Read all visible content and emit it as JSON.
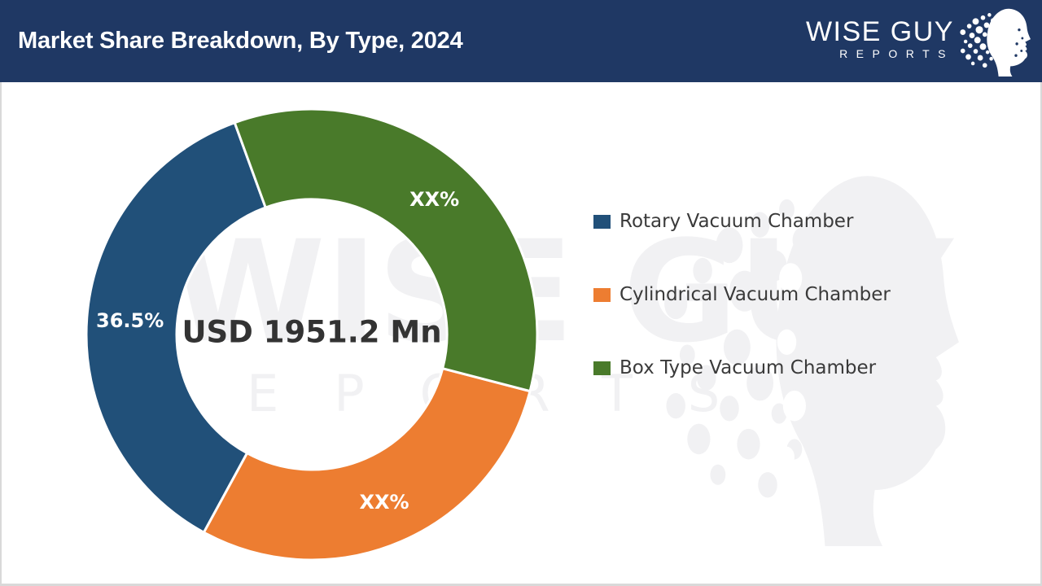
{
  "header": {
    "title": "Market Share Breakdown, By Type, 2024",
    "bg_color": "#1F3864",
    "logo": {
      "wordmark": "WISE GUY",
      "tagline": "REPORTS"
    }
  },
  "watermark": {
    "wordmark": "WISE GUY",
    "tagline": "REPORTS"
  },
  "chart_data": {
    "type": "pie",
    "subtype": "donut",
    "title": "Market Share Breakdown, By Type, 2024",
    "center_label": "USD 1951.2 Mn",
    "hole_radius_ratio": 0.6,
    "start_angle_deg": 110,
    "direction": "counterclockwise",
    "legend_position": "right",
    "slices": [
      {
        "label": "Rotary Vacuum Chamber",
        "display_pct": "36.5%",
        "value_pct": 36.5,
        "color": "#215079"
      },
      {
        "label": "Cylindrical Vacuum Chamber",
        "display_pct": "XX%",
        "value_pct": 28.9,
        "color": "#ED7D31"
      },
      {
        "label": "Box Type Vacuum Chamber",
        "display_pct": "XX%",
        "value_pct": 34.6,
        "color": "#497A2A"
      }
    ],
    "colors": {
      "center_text": "#333333",
      "slice_label_text": "#FFFFFF",
      "legend_text": "#3A3A3A",
      "watermark": "#F1F1F3"
    }
  }
}
